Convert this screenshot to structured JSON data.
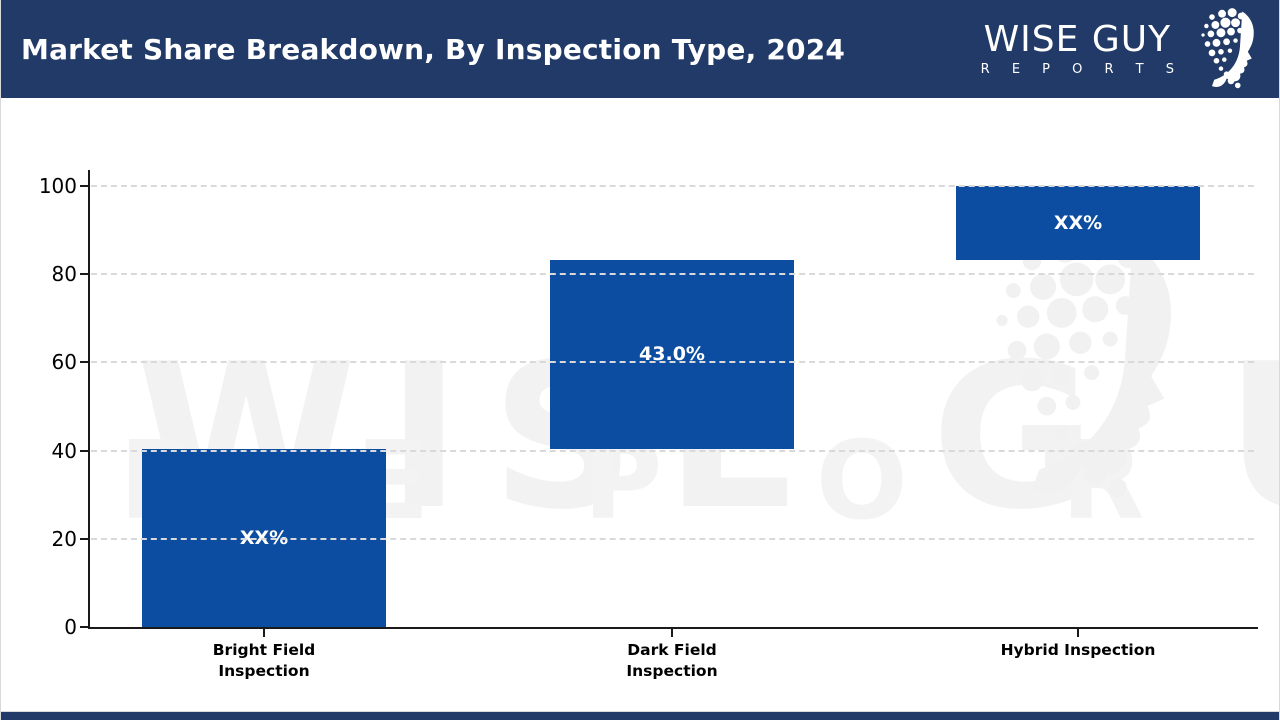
{
  "header": {
    "title": "Market Share Breakdown, By Inspection Type, 2024",
    "logo_line1": "WISE GUY",
    "logo_line2": "R E P O R T S"
  },
  "watermark": {
    "line1": "WISE G U Y",
    "line2": "R E P O R T S"
  },
  "colors": {
    "header_bg": "#213a67",
    "bar": "#0c4da2",
    "gridline": "#d9d9d9",
    "axis": "#1a1a1a",
    "bar_label": "#ffffff",
    "watermark": "#f2f2f2",
    "footer_bar": "#213a67"
  },
  "chart_data": {
    "type": "bar",
    "subtype": "stacked_waterfall_segments",
    "title": "Market Share Breakdown, By Inspection Type, 2024",
    "categories": [
      [
        "Bright Field",
        "Inspection"
      ],
      [
        "Dark Field",
        "Inspection"
      ],
      [
        "Hybrid Inspection"
      ]
    ],
    "segments": [
      {
        "category": "Bright Field Inspection",
        "start": 0,
        "end": 40.3,
        "label": "XX%"
      },
      {
        "category": "Dark Field Inspection",
        "start": 40.3,
        "end": 83.3,
        "label": "43.0%"
      },
      {
        "category": "Hybrid Inspection",
        "start": 83.3,
        "end": 100,
        "label": "XX%"
      }
    ],
    "yticks": [
      0,
      20,
      40,
      60,
      80,
      100
    ],
    "ylim": [
      0,
      103.5
    ],
    "xlabel": "",
    "ylabel": "",
    "grid": "horizontal-dashed",
    "legend": "none"
  }
}
